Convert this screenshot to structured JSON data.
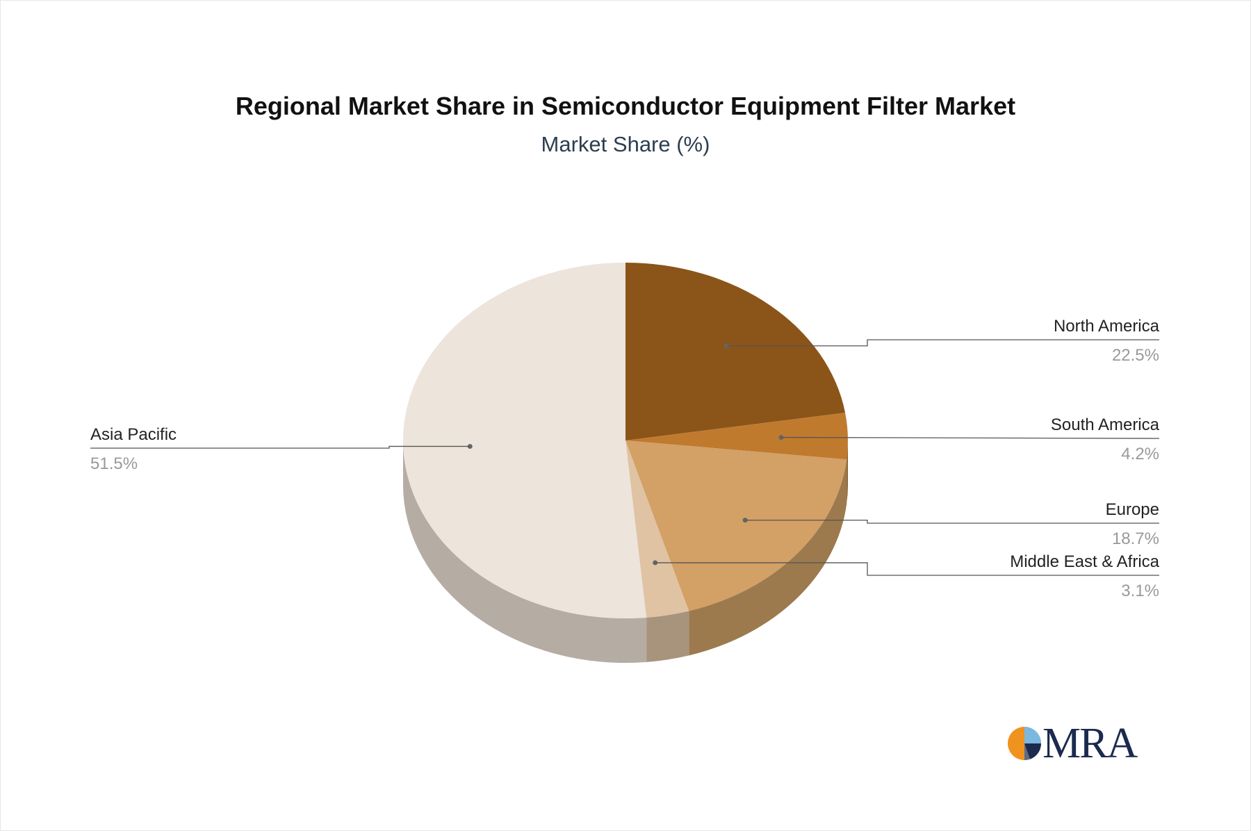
{
  "chart_data": {
    "type": "pie",
    "title": "Regional Market Share in Semiconductor Equipment Filter Market",
    "subtitle": "Market Share (%)",
    "slices": [
      {
        "name": "North America",
        "value": 22.5,
        "label": "22.5%",
        "color": "#8b5418",
        "side_color": "#5e3a12"
      },
      {
        "name": "South America",
        "value": 4.2,
        "label": "4.2%",
        "color": "#c07a2e",
        "side_color": "#8a5a24"
      },
      {
        "name": "Europe",
        "value": 18.7,
        "label": "18.7%",
        "color": "#d3a066",
        "side_color": "#9c7a4d"
      },
      {
        "name": "Middle East & Africa",
        "value": 3.1,
        "label": "3.1%",
        "color": "#dfc3a2",
        "side_color": "#a8937c"
      },
      {
        "name": "Asia Pacific",
        "value": 51.5,
        "label": "51.5%",
        "color": "#ede4db",
        "side_color": "#b5aca3"
      }
    ],
    "legend": "none"
  },
  "logo": {
    "text": "MRA",
    "icon": "mra-pie-logo-icon"
  }
}
